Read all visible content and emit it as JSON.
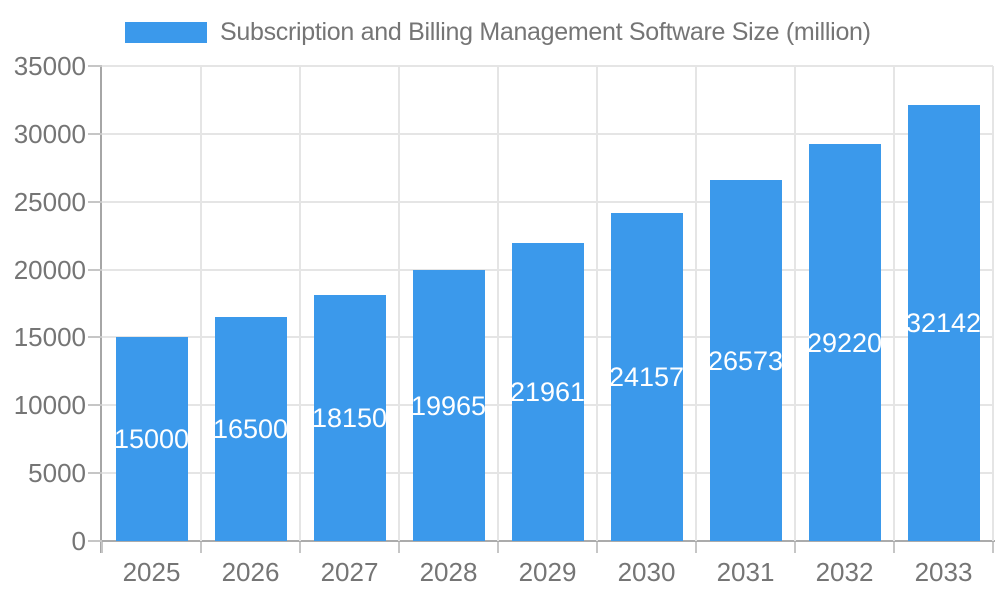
{
  "legend": {
    "label": "Subscription and Billing Management Software Size (million)",
    "swatch_color": "#3b99eb"
  },
  "chart_data": {
    "type": "bar",
    "title": "Subscription and Billing Management Software Size (million)",
    "categories": [
      "2025",
      "2026",
      "2027",
      "2028",
      "2029",
      "2030",
      "2031",
      "2032",
      "2033"
    ],
    "values": [
      15000,
      16500,
      18150,
      19965,
      21961,
      24157,
      26573,
      29220,
      32142
    ],
    "value_labels": [
      "15000",
      "16500",
      "18150",
      "19965",
      "21961",
      "24157",
      "26573",
      "29220",
      "32142"
    ],
    "xlabel": "",
    "ylabel": "",
    "ylim": [
      0,
      35000
    ],
    "y_ticks": [
      0,
      5000,
      10000,
      15000,
      20000,
      25000,
      30000,
      35000
    ],
    "y_tick_labels": [
      "0",
      "5000",
      "10000",
      "15000",
      "20000",
      "25000",
      "30000",
      "35000"
    ],
    "grid": true,
    "legend_position": "top",
    "bar_color": "#3b99eb",
    "value_label_color": "#ffffff",
    "axis_text_color": "#757575",
    "gridline_color": "#e5e5e5"
  }
}
